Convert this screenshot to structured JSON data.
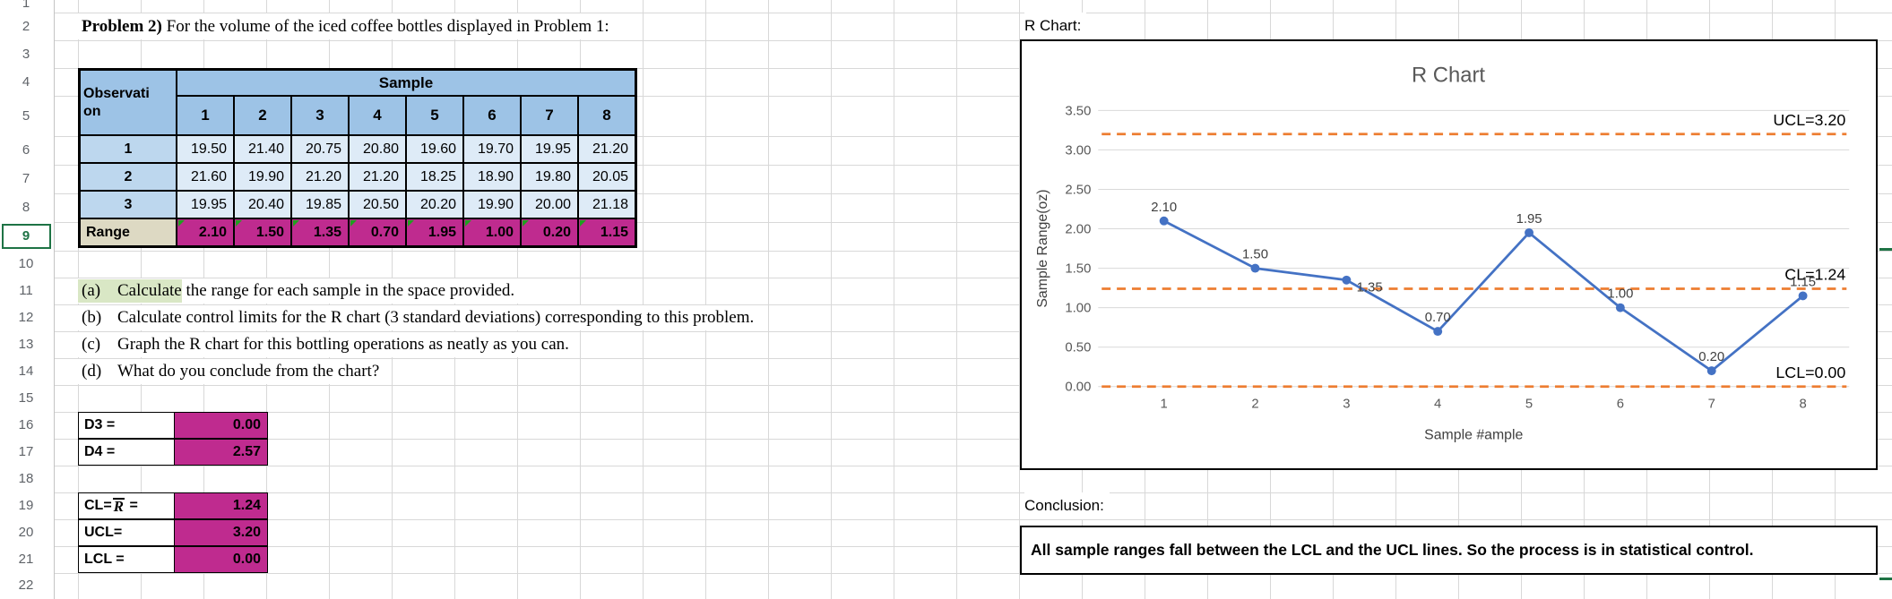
{
  "sheet": {
    "row_numbers": [
      "1",
      "2",
      "3",
      "4",
      "5",
      "6",
      "7",
      "8",
      "9",
      "10",
      "11",
      "12",
      "13",
      "14",
      "15",
      "16",
      "17",
      "18",
      "19",
      "20",
      "21",
      "22"
    ],
    "selected_row": "9",
    "problem": {
      "bold": "Problem 2)",
      "rest": " For the volume of the iced coffee bottles displayed in Problem 1:"
    },
    "questions": [
      {
        "label": "(a)",
        "text": "Calculate the range for each sample in the space provided."
      },
      {
        "label": "(b)",
        "text": "Calculate control limits for the R chart (3 standard deviations) corresponding to this problem."
      },
      {
        "label": "(c)",
        "text": "Graph the R chart for this bottling operations as neatly as you can."
      },
      {
        "label": "(d)",
        "text": "What do you conclude from the chart?"
      }
    ],
    "table": {
      "corner_header": "Observati\non",
      "merged_header": "Sample",
      "col_headers": [
        "1",
        "2",
        "3",
        "4",
        "5",
        "6",
        "7",
        "8"
      ],
      "obs_rows": [
        {
          "label": "1",
          "values": [
            "19.50",
            "21.40",
            "20.75",
            "20.80",
            "19.60",
            "19.70",
            "19.95",
            "21.20"
          ]
        },
        {
          "label": "2",
          "values": [
            "21.60",
            "19.90",
            "21.20",
            "21.20",
            "18.25",
            "18.90",
            "19.80",
            "20.05"
          ]
        },
        {
          "label": "3",
          "values": [
            "19.95",
            "20.40",
            "19.85",
            "20.50",
            "20.20",
            "19.90",
            "20.00",
            "21.18"
          ]
        }
      ],
      "range_row": {
        "label": "Range",
        "values": [
          "2.10",
          "1.50",
          "1.35",
          "0.70",
          "1.95",
          "1.00",
          "0.20",
          "1.15"
        ]
      }
    },
    "constants": [
      {
        "label": "D3 =",
        "value": "0.00"
      },
      {
        "label": "D4 =",
        "value": "2.57"
      }
    ],
    "limits": {
      "cl": {
        "pre": "CL=",
        "rbar": "R",
        "post": " =",
        "value": "1.24"
      },
      "ucl": {
        "label": "UCL=",
        "value": "3.20"
      },
      "lcl": {
        "label": "LCL =",
        "value": "0.00"
      }
    }
  },
  "right_panel": {
    "chart_caption": "R Chart:",
    "conclusion_caption": "Conclusion:",
    "conclusion_text": "All sample ranges fall between the LCL and the UCL lines. So the process is in statistical control."
  },
  "chart_data": {
    "type": "line",
    "title": "R Chart",
    "x": [
      1,
      2,
      3,
      4,
      5,
      6,
      7,
      8
    ],
    "series": [
      {
        "name": "Sample Range",
        "values": [
          2.1,
          1.5,
          1.35,
          0.7,
          1.95,
          1.0,
          0.2,
          1.15
        ]
      }
    ],
    "point_labels": [
      "2.10",
      "1.50",
      "1.35",
      "0.70",
      "1.95",
      "1.00",
      "0.20",
      "1.15"
    ],
    "limit_lines": [
      {
        "name": "UCL",
        "value": 3.2,
        "label": "UCL=3.20"
      },
      {
        "name": "CL",
        "value": 1.24,
        "label": "CL=1.24"
      },
      {
        "name": "LCL",
        "value": 0.0,
        "label": "LCL=0.00"
      }
    ],
    "xlabel": "Sample #ample",
    "ylabel": "Sample Range(oz)",
    "ylim": [
      0,
      3.5
    ],
    "ytick_step": 0.5,
    "ytick_labels": [
      "0.00",
      "0.50",
      "1.00",
      "1.50",
      "2.00",
      "2.50",
      "3.00",
      "3.50"
    ],
    "xtick_labels": [
      "1",
      "2",
      "3",
      "4",
      "5",
      "6",
      "7",
      "8"
    ],
    "grid": true,
    "legend": "none",
    "series_color": "#4472C4",
    "limit_color": "#ED7D31",
    "title_color": "#595959"
  },
  "colors": {
    "header_blue": "#9DC3E6",
    "label_blue": "#BDD7EE",
    "cell_blue": "#DEEBF7",
    "range_tan": "#DDD9C3",
    "magenta": "#BF2B8F",
    "selection_green": "#1E7345",
    "flag_green": "#1FA01F",
    "chart_blue": "#4472C4",
    "chart_orange": "#ED7D31"
  }
}
